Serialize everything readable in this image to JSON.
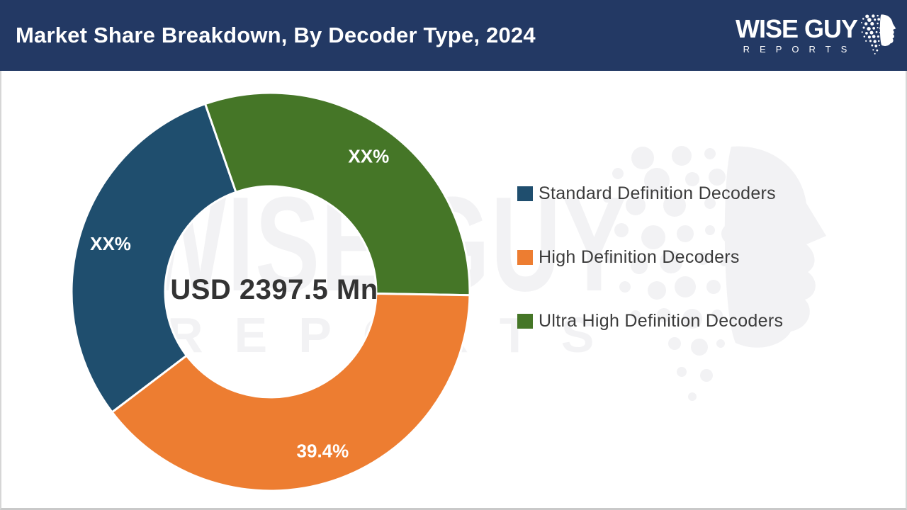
{
  "header": {
    "title": "Market Share Breakdown, By Decoder Type, 2024"
  },
  "brand": {
    "line1": "WISE GUY",
    "line2": "REPORTS"
  },
  "chart_data": {
    "type": "pie",
    "subtype": "donut",
    "title": "Market Share Breakdown, By Decoder Type, 2024",
    "center_label": "USD 2397.5 Mn",
    "units": "percent of market share",
    "segments": [
      {
        "label": "Standard Definition Decoders",
        "value_pct": 30.0,
        "display_label": "XX%",
        "color": "#1f4e6e"
      },
      {
        "label": "High Definition Decoders",
        "value_pct": 39.4,
        "display_label": "39.4%",
        "color": "#ed7d31"
      },
      {
        "label": "Ultra High Definition Decoders",
        "value_pct": 30.6,
        "display_label": "XX%",
        "color": "#457627"
      }
    ],
    "layout": {
      "rotation_deg": 232.8,
      "draw_order": [
        0,
        2,
        1
      ],
      "donut_hole_ratio": 0.53,
      "label_radius_ratio": 0.84,
      "slice_gap_color": "#ffffff",
      "legend_position": "right"
    }
  }
}
